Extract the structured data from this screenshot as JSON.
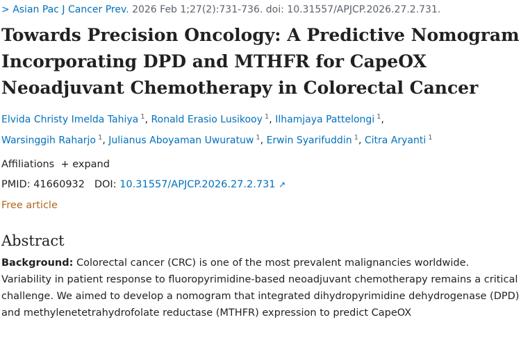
{
  "citation": {
    "journal": "Asian Pac J Cancer Prev.",
    "details": "2026 Feb 1;27(2):731-736. doi: 10.31557/APJCP.2026.27.2.731."
  },
  "title": "Towards Precision Oncology: A Predictive Nomogram Incorporating DPD and MTHFR for CapeOX Neoadjuvant Chemotherapy in Colorectal Cancer",
  "authors": [
    {
      "name": "Elvida Christy Imelda Tahiya",
      "sup": "1"
    },
    {
      "name": "Ronald Erasio Lusikooy",
      "sup": "1"
    },
    {
      "name": "Ilhamjaya Pattelongi",
      "sup": "1"
    },
    {
      "name": "Warsinggih Raharjo",
      "sup": "1"
    },
    {
      "name": "Julianus Aboyaman Uwuratuw",
      "sup": "1"
    },
    {
      "name": "Erwin Syarifuddin",
      "sup": "1"
    },
    {
      "name": "Citra Aryanti",
      "sup": "1"
    }
  ],
  "affiliations": {
    "label": "Affiliations",
    "expand": "expand"
  },
  "ids": {
    "pmid_label": "PMID:",
    "pmid": "41660932",
    "doi_label": "DOI:",
    "doi": "10.31557/APJCP.2026.27.2.731"
  },
  "free": "Free article",
  "abstract": {
    "heading": "Abstract",
    "label": "Background:",
    "text": "Colorectal cancer (CRC) is one of the most prevalent malignancies worldwide. Variability in patient response to fluoropyrimidine-based neoadjuvant chemotherapy remains a critical challenge. We aimed to develop a nomogram that integrated dihydropyrimidine dehydrogenase (DPD) and methylenetetrahydrofolate reductase (MTHFR) expression to predict CapeOX"
  }
}
